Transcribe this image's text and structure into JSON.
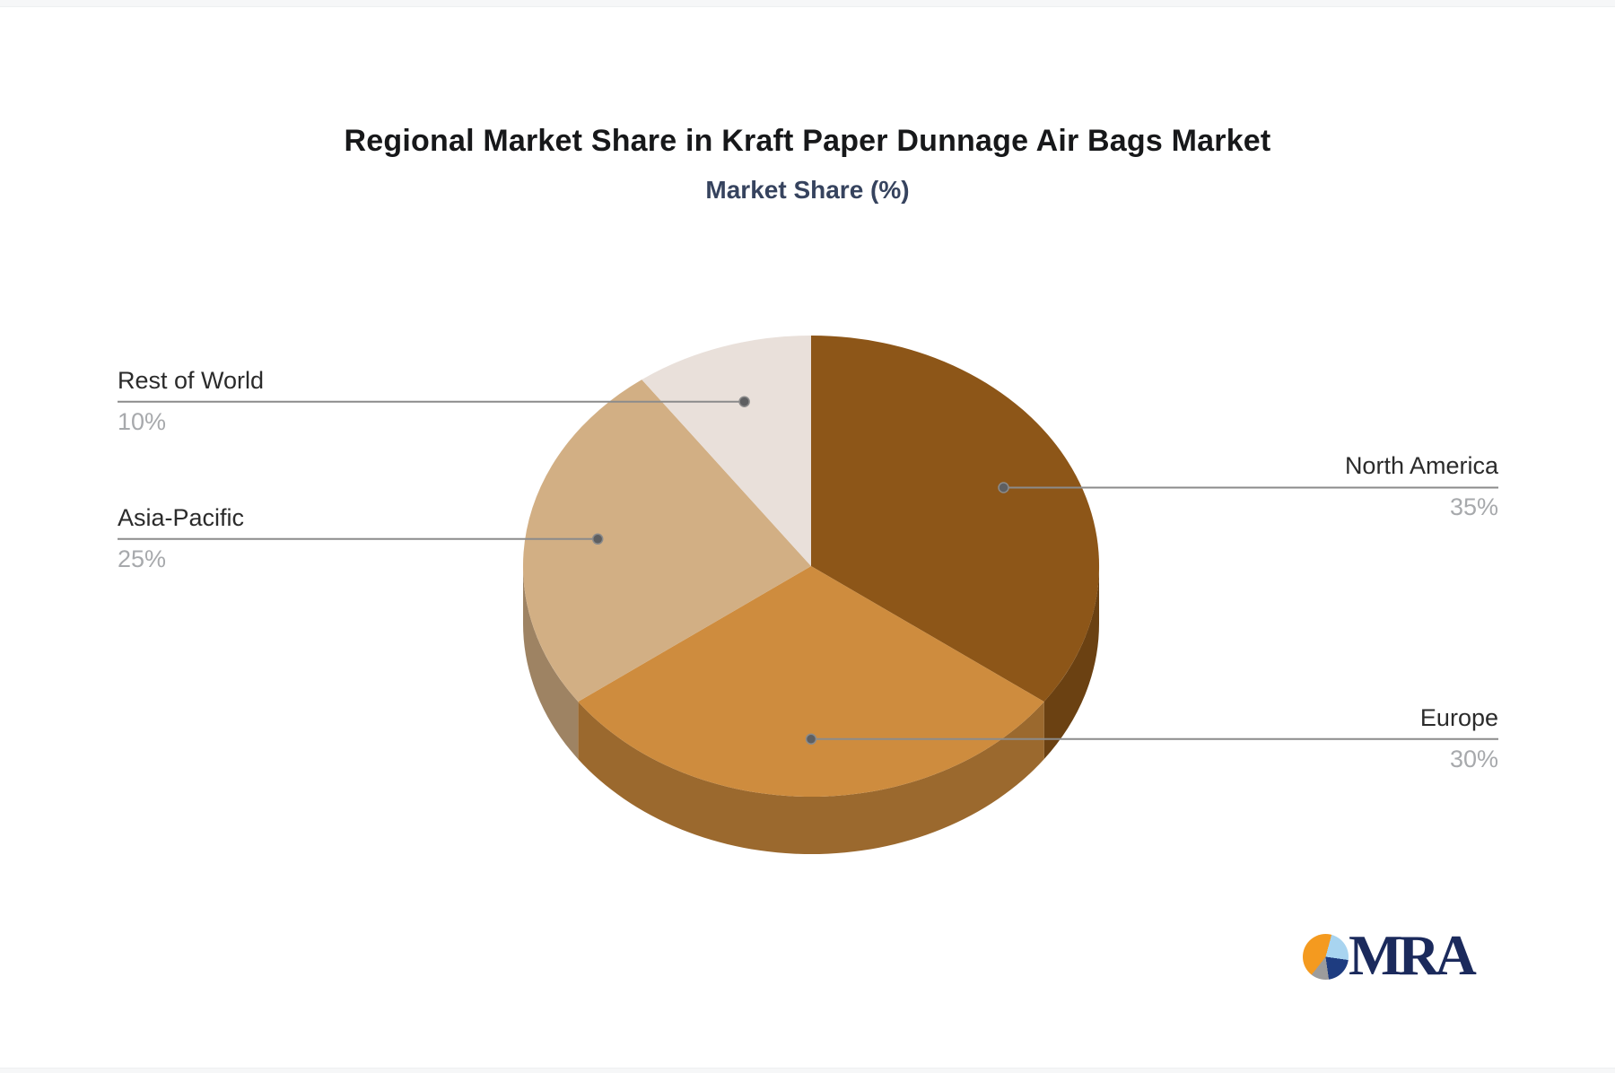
{
  "chart_data": {
    "type": "pie",
    "title": "Regional Market Share in Kraft Paper Dunnage Air Bags Market",
    "subtitle": "Market Share (%)",
    "unit": "%",
    "effect": "3d",
    "start_angle": "top",
    "direction": "clockwise",
    "legend_position": "leader-line-labels",
    "categories": [
      "North America",
      "Europe",
      "Asia-Pacific",
      "Rest of World"
    ],
    "values": [
      35,
      30,
      25,
      10
    ],
    "series": [
      {
        "label": "North America",
        "value": 35,
        "pct_text": "35%",
        "color": "#8d5618",
        "side_color": "#6b4112",
        "label_side": "right"
      },
      {
        "label": "Europe",
        "value": 30,
        "pct_text": "30%",
        "color": "#ce8c3e",
        "side_color": "#9b692e",
        "label_side": "right"
      },
      {
        "label": "Asia-Pacific",
        "value": 25,
        "pct_text": "25%",
        "color": "#d2af84",
        "side_color": "#9e8363",
        "label_side": "left"
      },
      {
        "label": "Rest of World",
        "value": 10,
        "pct_text": "10%",
        "color": "#e9e0da",
        "side_color": "#b3aca6",
        "label_side": "left"
      }
    ],
    "leader_line_color": "#8b8b8b",
    "leader_dot_color": "#5e5f61",
    "label_text_color": "#2b2b2b",
    "percent_text_color": "#a7a9ac",
    "title_color": "#17181a",
    "subtitle_color": "#36435e"
  },
  "logo": {
    "text": "MRA",
    "text_color": "#1b2a5c",
    "mark_colors": {
      "orange": "#f49a1f",
      "light_blue": "#a8d4f0",
      "navy": "#1e3c80",
      "gray": "#9c9c9c"
    }
  }
}
